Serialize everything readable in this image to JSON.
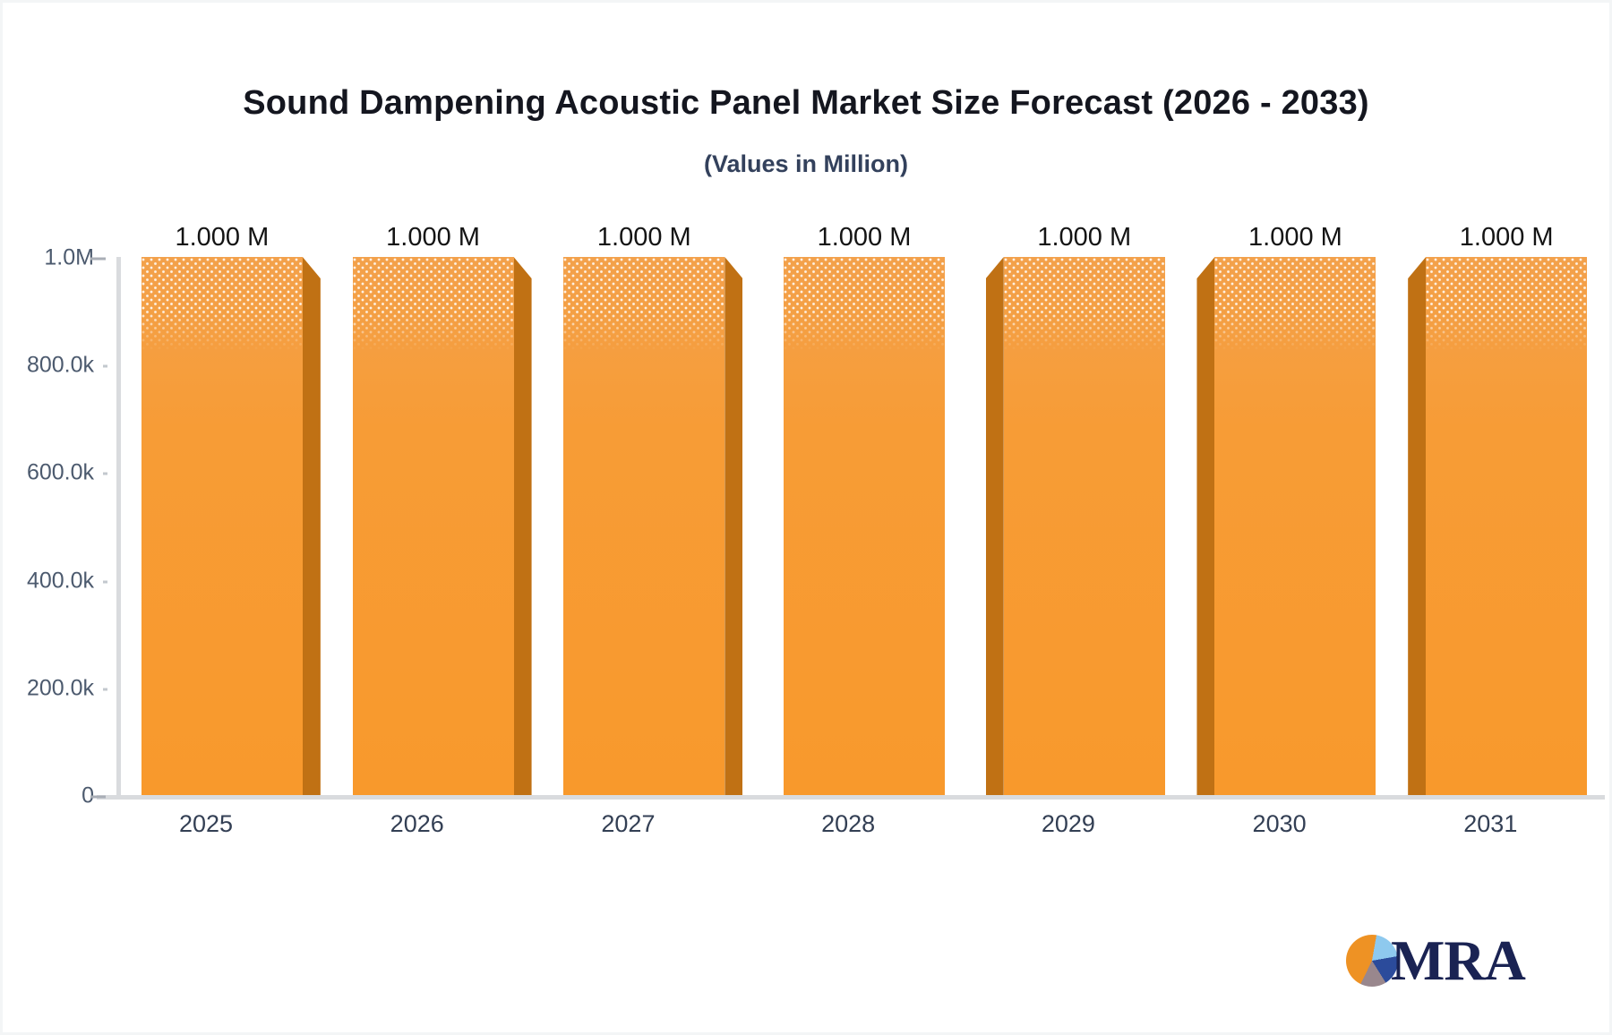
{
  "header": {
    "title": "Sound Dampening Acoustic Panel Market Size Forecast (2026 - 2033)",
    "subtitle": "(Values in Million)"
  },
  "chart_data": {
    "type": "bar",
    "title": "Sound Dampening Acoustic Panel Market Size Forecast (2026 - 2033)",
    "subtitle": "(Values in Million)",
    "categories": [
      "2025",
      "2026",
      "2027",
      "2028",
      "2029",
      "2030",
      "2031"
    ],
    "values": [
      1000000,
      1000000,
      1000000,
      1000000,
      1000000,
      1000000,
      1000000
    ],
    "value_labels": [
      "1.000 M",
      "1.000 M",
      "1.000 M",
      "1.000 M",
      "1.000 M",
      "1.000 M",
      "1.000 M"
    ],
    "xlabel": "",
    "ylabel": "",
    "ylim": [
      0,
      1000000
    ],
    "ytick_values": [
      1000000,
      800000,
      600000,
      400000,
      200000,
      0
    ],
    "ytick_labels": [
      "1.0M",
      "800.0k",
      "600.0k",
      "400.0k",
      "200.0k",
      "0"
    ],
    "grid": false,
    "legend_position": "none",
    "bar_face_color": "#f79b31",
    "bar_side_color": "#c07114",
    "style_note": "3d-perspective bars with white dotted texture at top"
  },
  "branding": {
    "logo_text": "MRA",
    "pie_icon_colors": {
      "orange": "#ee9224",
      "light_blue": "#8ec9ee",
      "dark_blue": "#2b4b9b",
      "gray": "#99878d"
    }
  }
}
